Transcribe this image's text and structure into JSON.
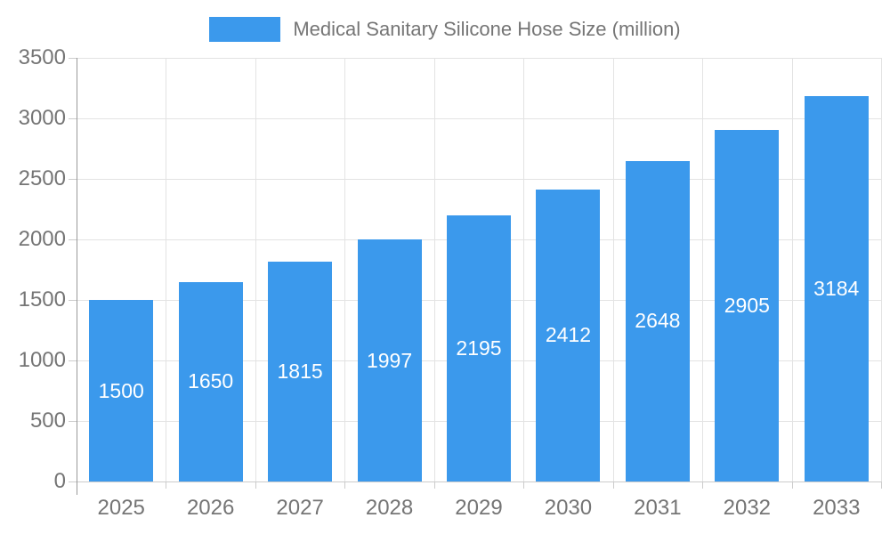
{
  "chart_data": {
    "type": "bar",
    "title": "Medical Sanitary Silicone Hose Size (million)",
    "legend_position": "top",
    "categories": [
      "2025",
      "2026",
      "2027",
      "2028",
      "2029",
      "2030",
      "2031",
      "2032",
      "2033"
    ],
    "values": [
      1500,
      1650,
      1815,
      1997,
      2195,
      2412,
      2648,
      2905,
      3184
    ],
    "value_label_position": "inside-center",
    "xlabel": "",
    "ylabel": "",
    "ylim": [
      0,
      3500
    ],
    "yticks": [
      0,
      500,
      1000,
      1500,
      2000,
      2500,
      3000,
      3500
    ],
    "grid": true,
    "colors": {
      "bar": "#3B99EC",
      "value_label": "#FFFFFF",
      "axis_text": "#757575",
      "gridline": "#E3E3E3",
      "axis_line": "#999999",
      "tick": "#CCCCCC",
      "background": "#FFFFFF"
    }
  }
}
